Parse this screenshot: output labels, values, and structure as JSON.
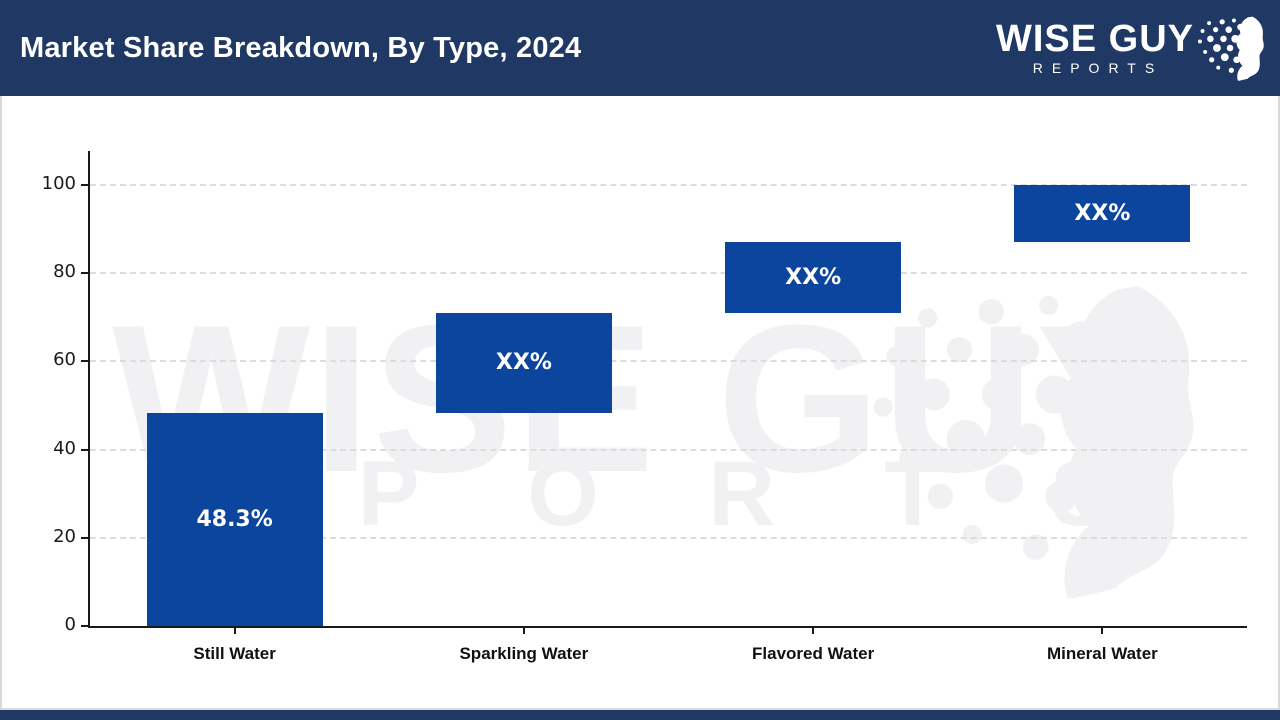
{
  "header": {
    "title": "Market Share Breakdown, By Type, 2024",
    "logo": {
      "name": "WISE GUY",
      "sub": "REPORTS"
    }
  },
  "watermark": {
    "name": "WISE GUY",
    "sub": "P O R T S"
  },
  "chart_data": {
    "type": "bar",
    "subtype": "waterfall",
    "title": "Market Share Breakdown, By Type, 2024",
    "categories": [
      "Still Water",
      "Sparkling Water",
      "Flavored Water",
      "Mineral Water"
    ],
    "segments": [
      {
        "category": "Still Water",
        "start": 0,
        "end": 48.3,
        "label": "48.3%"
      },
      {
        "category": "Sparkling Water",
        "start": 48.3,
        "end": 71,
        "label": "XX%"
      },
      {
        "category": "Flavored Water",
        "start": 71,
        "end": 87,
        "label": "XX%"
      },
      {
        "category": "Mineral Water",
        "start": 87,
        "end": 100,
        "label": "XX%"
      }
    ],
    "ylim": [
      0,
      100
    ],
    "yticks": [
      0,
      20,
      40,
      60,
      80,
      100
    ],
    "xlabel": "",
    "ylabel": "",
    "legend": "none",
    "grid": "horizontal-dashed",
    "bar_color": "#0b459e",
    "value_label_color": "#ffffff"
  },
  "colors": {
    "header_bg": "#203864",
    "footer_bg": "#203864",
    "axis": "#1a1a1a",
    "gridline": "#dcdcdc",
    "watermark": "#f1f1f3"
  }
}
